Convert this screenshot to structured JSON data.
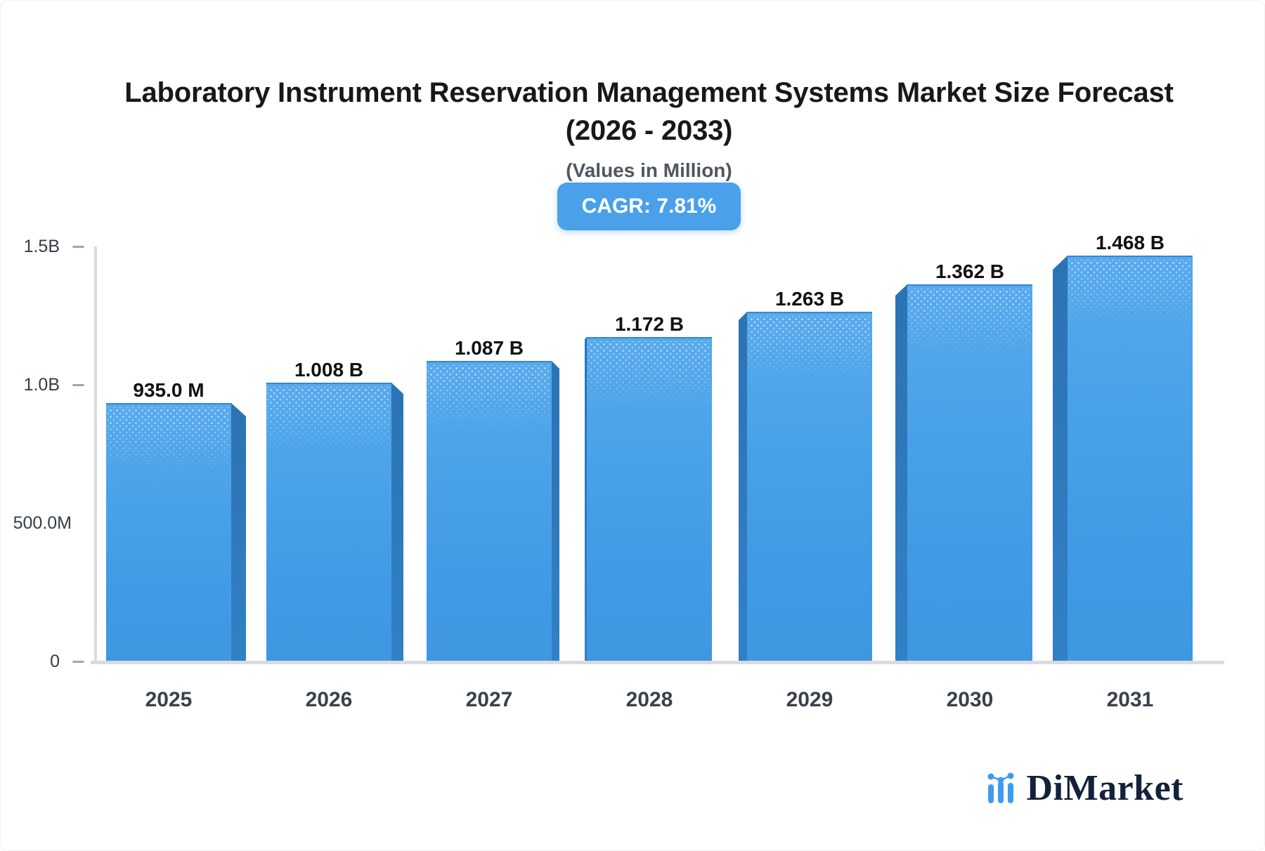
{
  "header": {
    "title_line1": "Laboratory Instrument Reservation Management Systems Market Size Forecast",
    "title_line2": "(2026 - 2033)",
    "subtitle": "(Values in Million)",
    "cagr_badge": "CAGR: 7.81%"
  },
  "chart_data": {
    "type": "bar",
    "title": "Laboratory Instrument Reservation Management Systems Market Size Forecast (2026 - 2033)",
    "subtitle": "(Values in Million)",
    "cagr_percent": 7.81,
    "categories": [
      "2025",
      "2026",
      "2027",
      "2028",
      "2029",
      "2030",
      "2031"
    ],
    "values_millions": [
      935.0,
      1008.0,
      1087.0,
      1172.0,
      1263.0,
      1362.0,
      1468.0
    ],
    "bar_labels": [
      "935.0 M",
      "1.008 B",
      "1.087 B",
      "1.172 B",
      "1.263 B",
      "1.362 B",
      "1.468 B"
    ],
    "xlabel": "",
    "ylabel": "",
    "ylim_millions": [
      0,
      1500
    ],
    "grid": false,
    "legend": false,
    "y_axis_ticks": [
      {
        "label": "1.5B",
        "value_millions": 1500,
        "dash": true
      },
      {
        "label": "1.0B",
        "value_millions": 1000,
        "dash": true
      },
      {
        "label": "500.0M",
        "value_millions": 500,
        "dash": false
      },
      {
        "label": "0",
        "value_millions": 0,
        "dash": true
      }
    ],
    "colors": {
      "bar_front": "#47A0E7",
      "bar_side": "#2E79BB",
      "axis_line": "#D9DBDE",
      "tick_dash": "#9FA6AE",
      "value_label": "#0F1113",
      "badge_background": "#4AA0E9",
      "badge_text": "#FFFFFF"
    }
  },
  "logo": {
    "text": "DiMarket",
    "icon": "bar-chart-logo-icon",
    "text_color": "#14213B",
    "icon_color": "#3E9CEF"
  }
}
